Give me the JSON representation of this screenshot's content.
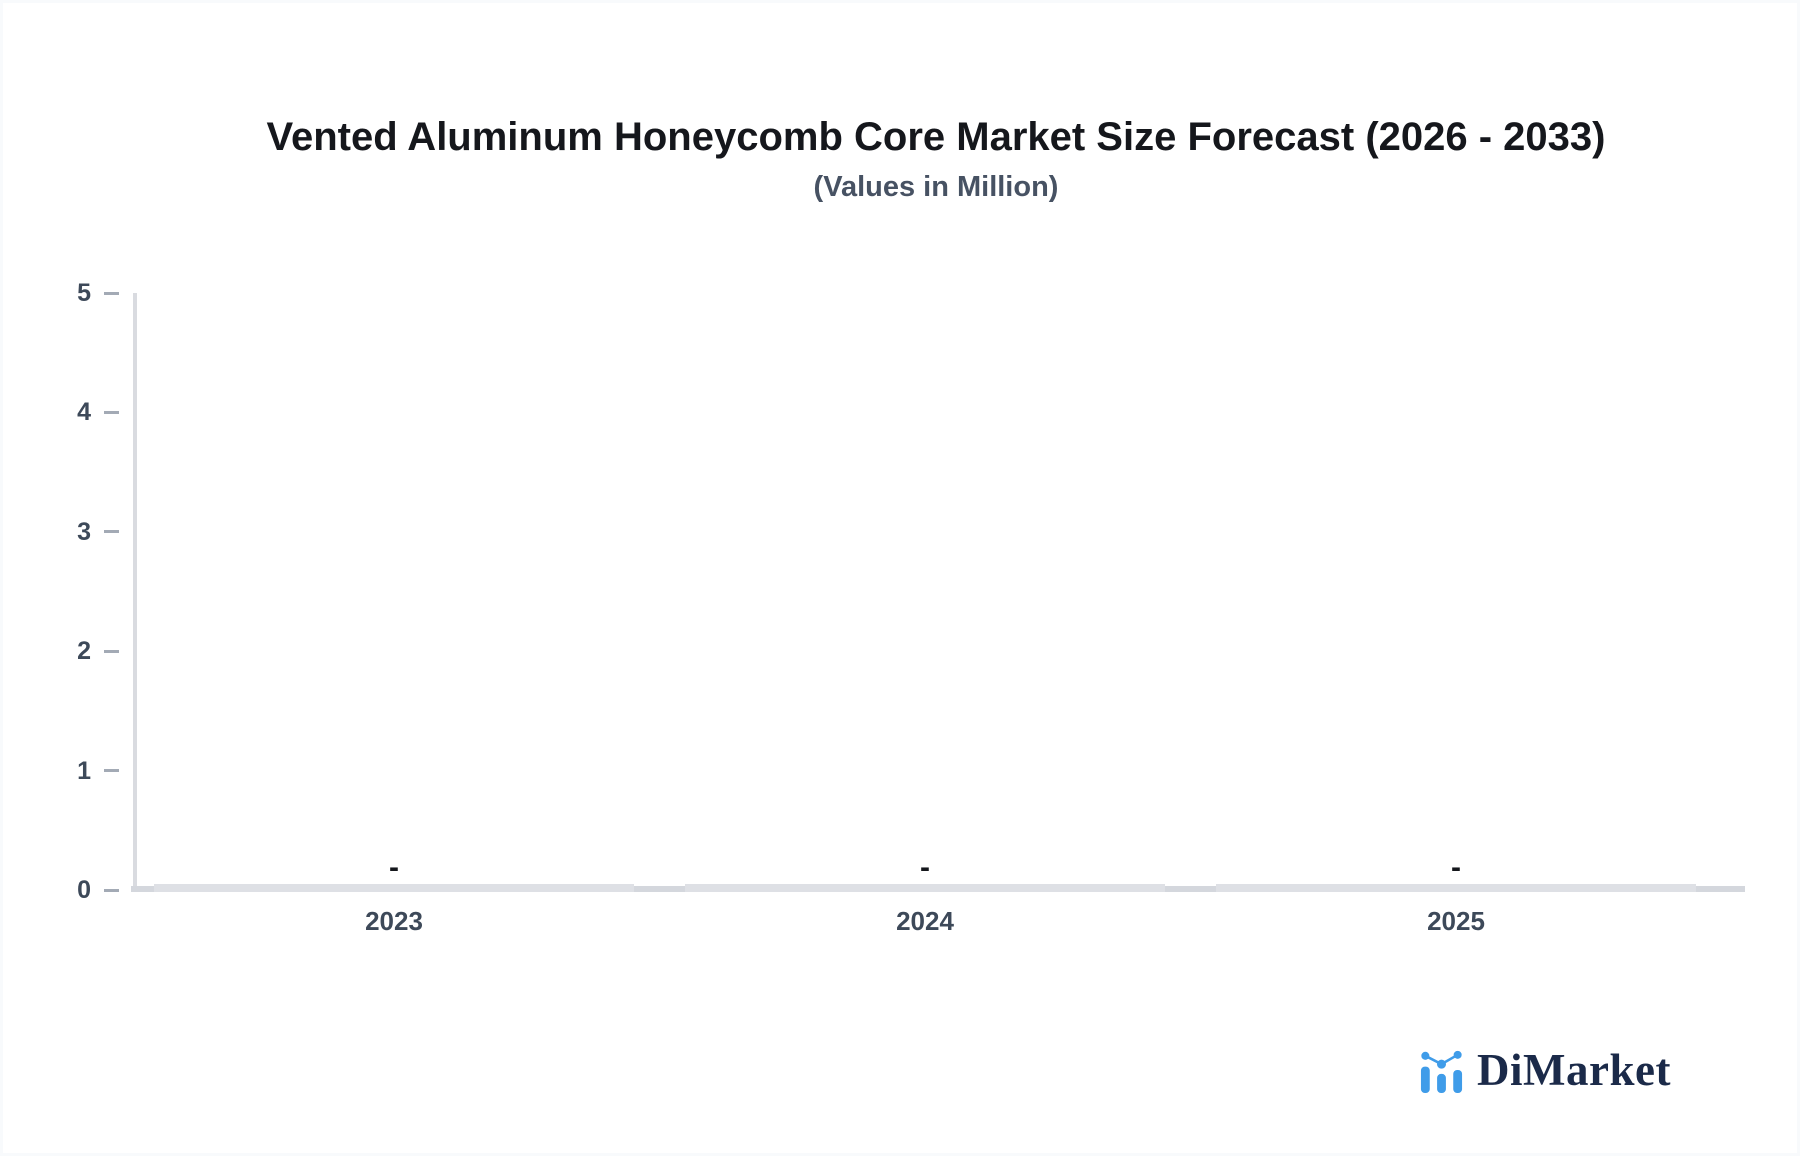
{
  "page": {
    "background_color": "#ffffff",
    "border_color": "#f8fafc"
  },
  "chart_data": {
    "type": "bar",
    "title": "Vented Aluminum Honeycomb Core Market Size Forecast (2026 - 2033)",
    "subtitle": "(Values in Million)",
    "categories": [
      "2023",
      "2024",
      "2025"
    ],
    "values": [
      null,
      null,
      null
    ],
    "value_labels": [
      "-",
      "-",
      "-"
    ],
    "xlabel": "",
    "ylabel": "",
    "ylim": [
      0,
      5
    ],
    "yticks": [
      0,
      1,
      2,
      3,
      4,
      5
    ],
    "grid": false,
    "legend": false,
    "colors": {
      "bar": "#dee0e5",
      "x_axis_line": "#d4d7dd",
      "y_axis_line": "#d9dbe0",
      "tick_mark": "#a3aab5",
      "tick_label": "#3d4959",
      "title": "#15171c",
      "subtitle": "#475263",
      "value_label": "#15171c"
    }
  },
  "branding": {
    "name": "DiMarket",
    "icon": "bar-chart-logo-icon",
    "text_color": "#1b2a49",
    "icon_color": "#3f9ce9"
  }
}
